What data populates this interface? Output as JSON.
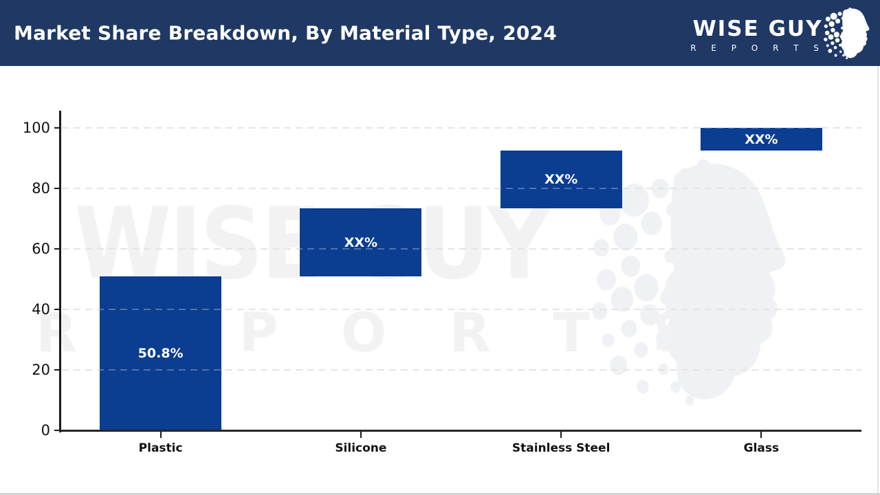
{
  "header": {
    "title": "Market Share Breakdown, By Material Type, 2024",
    "bg_color": "#1f3864",
    "logo": {
      "line1": "WISE GUY",
      "line2": "R E P O R T S",
      "face_icon": "dotted-face-profile"
    }
  },
  "watermark": {
    "line1": "WISE GUY",
    "line2": "R E P O R T S",
    "face_icon": "dotted-face-profile"
  },
  "chart_data": {
    "type": "bar",
    "subtype": "waterfall",
    "title": "Market Share Breakdown, By Material Type, 2024",
    "categories": [
      "Plastic",
      "Silicone",
      "Stainless Steel",
      "Glass"
    ],
    "segments": [
      {
        "category": "Plastic",
        "start": 0,
        "end": 50.8,
        "label": "50.8%"
      },
      {
        "category": "Silicone",
        "start": 50.8,
        "end": 73.4,
        "label": "XX%"
      },
      {
        "category": "Stainless Steel",
        "start": 73.4,
        "end": 92.5,
        "label": "XX%"
      },
      {
        "category": "Glass",
        "start": 92.5,
        "end": 100,
        "label": "XX%"
      }
    ],
    "xlabel": "",
    "ylabel": "",
    "y_ticks": [
      0,
      20,
      40,
      60,
      80,
      100
    ],
    "ylim": [
      0,
      105.5
    ],
    "grid": "horizontal-dashed",
    "legend": "none",
    "bar_color": "#0b3d91",
    "bar_label_color": "#ffffff",
    "axis_color": "#1a1a1a",
    "grid_color": "#d9d9d9"
  }
}
